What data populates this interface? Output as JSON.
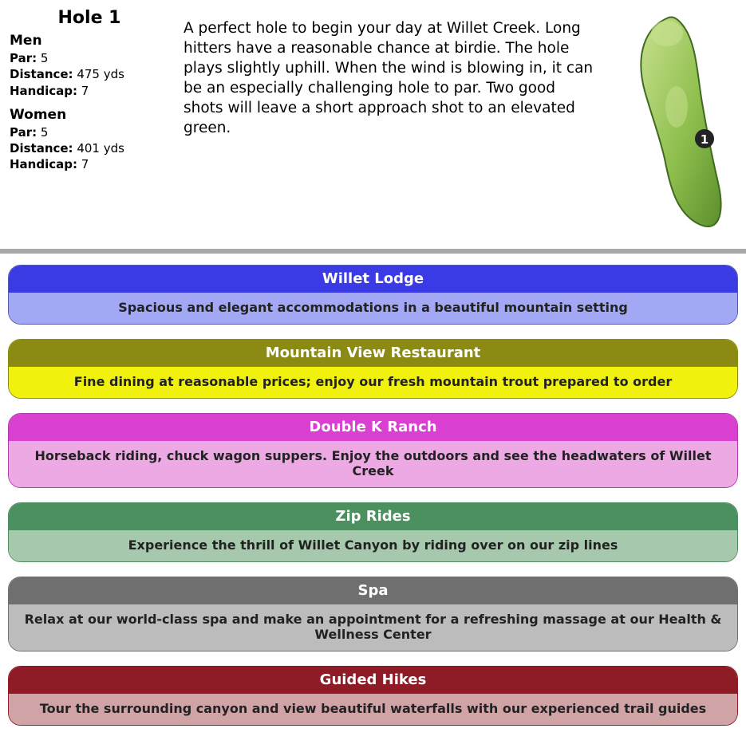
{
  "hole": {
    "title": "Hole 1",
    "men": {
      "label": "Men",
      "par_label": "Par:",
      "par_value": "5",
      "dist_label": "Distance:",
      "dist_value": "475 yds",
      "hcp_label": "Handicap:",
      "hcp_value": "7"
    },
    "women": {
      "label": "Women",
      "par_label": "Par:",
      "par_value": "5",
      "dist_label": "Distance:",
      "dist_value": "401 yds",
      "hcp_label": "Handicap:",
      "hcp_value": "7"
    },
    "description": "A perfect hole to begin your day at Willet Creek. Long hitters have a reasonable chance at birdie. The hole plays slightly uphill. When the wind is blowing in, it can be an especially challenging hole to par. Two good shots will leave a short approach shot to an elevated green.",
    "marker_number": "1",
    "illustration_colors": {
      "fairway": "#8fbf4d",
      "fairway_dark": "#5c8f2e",
      "fairway_light": "#c8e08f",
      "outline": "#3e6b1f",
      "marker_bg": "#232323",
      "marker_text": "#ffffff"
    }
  },
  "cards": [
    {
      "title": "Willet Lodge",
      "body": "Spacious and elegant accommodations in a beautiful mountain setting",
      "head_color": "#3b3be5",
      "body_color": "#a3a8f5",
      "border_color": "#5459b0"
    },
    {
      "title": "Mountain View Restaurant",
      "body": "Fine dining at reasonable prices; enjoy our fresh mountain trout prepared to order",
      "head_color": "#8b8b13",
      "body_color": "#f1f10e",
      "border_color": "#8b8b13"
    },
    {
      "title": "Double K Ranch",
      "body": "Horseback riding, chuck wagon suppers. Enjoy the outdoors and see the headwaters of Willet Creek",
      "head_color": "#d93fd1",
      "body_color": "#eda9e3",
      "border_color": "#b03ca9"
    },
    {
      "title": "Zip Rides",
      "body": "Experience the thrill of Willet Canyon by riding over on our zip lines",
      "head_color": "#4d9060",
      "body_color": "#a6c9ad",
      "border_color": "#4d9060"
    },
    {
      "title": "Spa",
      "body": "Relax at our world-class spa and make an appointment for a refreshing massage at our Health & Wellness Center",
      "head_color": "#6f6f6f",
      "body_color": "#bcbcbc",
      "border_color": "#6f6f6f"
    },
    {
      "title": "Guided Hikes",
      "body": "Tour the surrounding canyon and view beautiful waterfalls with our experienced trail guides",
      "head_color": "#8e1b26",
      "body_color": "#d0a3a7",
      "border_color": "#8e1b26"
    }
  ]
}
